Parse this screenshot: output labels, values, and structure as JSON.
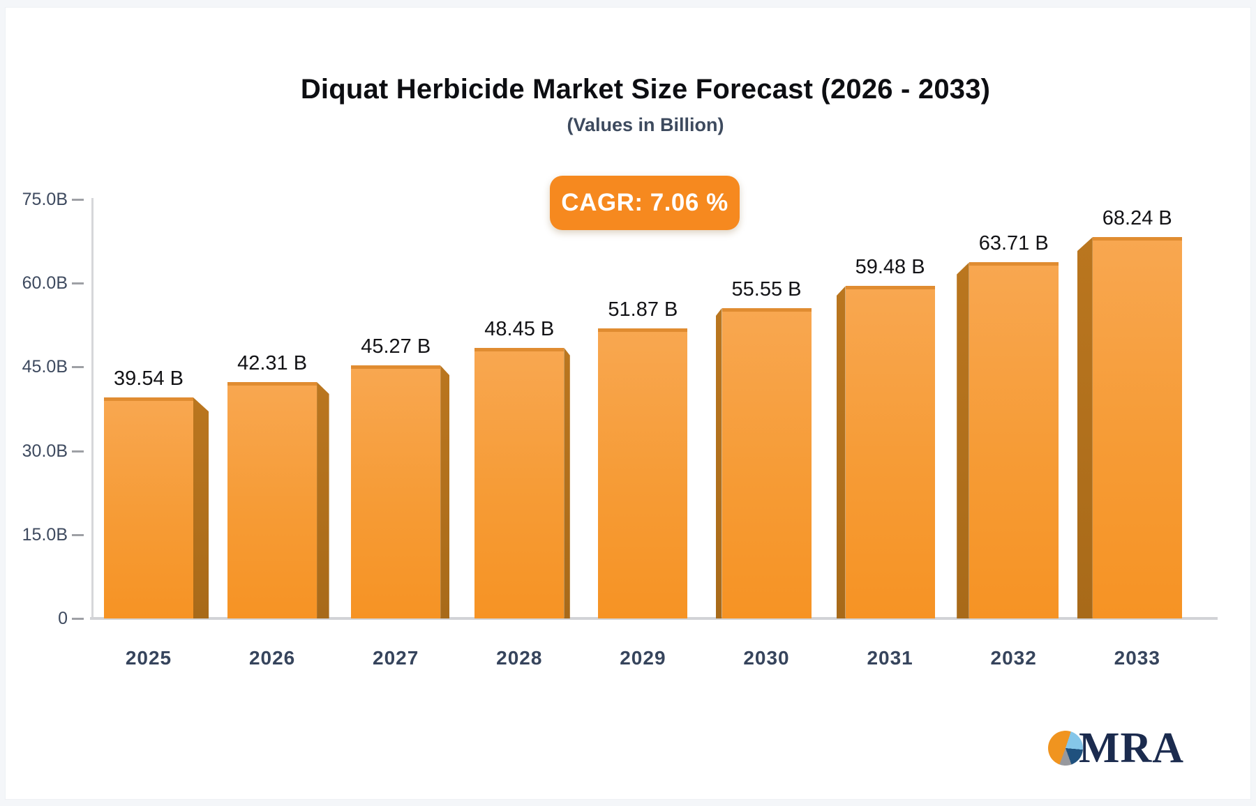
{
  "title": "Diquat Herbicide Market Size Forecast (2026 - 2033)",
  "subtitle": "(Values in Billion)",
  "badge": {
    "label": "CAGR: 7.06 %",
    "color": "#f6891f"
  },
  "chart_data": {
    "type": "bar",
    "title": "Diquat Herbicide Market Size Forecast (2026 - 2033)",
    "subtitle": "(Values in Billion)",
    "xlabel": "",
    "ylabel": "",
    "categories": [
      "2025",
      "2026",
      "2027",
      "2028",
      "2029",
      "2030",
      "2031",
      "2032",
      "2033"
    ],
    "values": [
      39.54,
      42.31,
      45.27,
      48.45,
      51.87,
      55.55,
      59.48,
      63.71,
      68.24
    ],
    "value_labels": [
      "39.54 B",
      "42.31 B",
      "45.27 B",
      "48.45 B",
      "51.87 B",
      "55.55 B",
      "59.48 B",
      "63.71 B",
      "68.24 B"
    ],
    "ylim": [
      0,
      75
    ],
    "ytick_values": [
      75,
      60,
      45,
      30,
      15,
      0
    ],
    "ytick_labels": [
      "75.0B",
      "60.0B",
      "45.0B",
      "30.0B",
      "15.0B",
      "0"
    ],
    "grid": "off",
    "legend": "none",
    "bar_face_color": "#f7a13f",
    "bar_side_color": "#b0701e",
    "bar_top_edge_color": "#e08c31",
    "axis_color": "#d2d3d6",
    "tick_label_color": "#3e4a5f",
    "value_label_color": "#131316"
  },
  "logo": {
    "text": "MRA",
    "pie_colors": [
      "#f0941f",
      "#85c6e9",
      "#1f517e",
      "#97999e"
    ]
  }
}
